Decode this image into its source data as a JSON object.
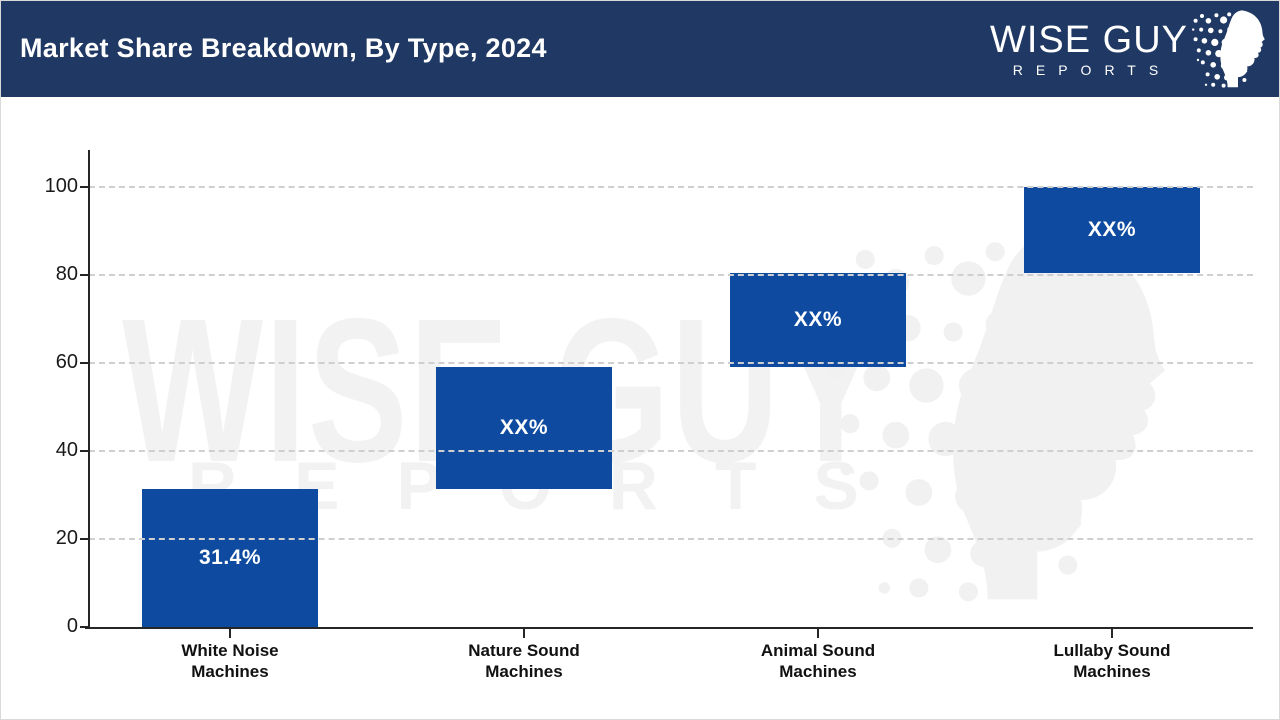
{
  "header": {
    "title": "Market Share Breakdown, By Type, 2024",
    "bg_color": "#203864",
    "logo": {
      "name": "WISE GUY",
      "sub": "REPORTS"
    }
  },
  "watermark": {
    "text_top": "WISE GUY",
    "text_bottom": "REPORTS"
  },
  "chart_data": {
    "type": "bar",
    "subtype": "waterfall",
    "title": "Market Share Breakdown, By Type, 2024",
    "xlabel": "",
    "ylabel": "",
    "ylim": [
      0,
      100
    ],
    "yticks": [
      0,
      20,
      40,
      60,
      80,
      100
    ],
    "grid": "horizontal-dashed-over-bars",
    "legend": "none",
    "bar_color": "#0d4aa0",
    "value_label_color": "#ffffff",
    "categories": [
      "White Noise\nMachines",
      "Nature Sound\nMachines",
      "Animal Sound\nMachines",
      "Lullaby Sound\nMachines"
    ],
    "bars": [
      {
        "category": "White Noise\nMachines",
        "start": 0,
        "end": 31.4,
        "value_label": "31.4%"
      },
      {
        "category": "Nature Sound\nMachines",
        "start": 31.4,
        "end": 59.0,
        "value_label": "XX%"
      },
      {
        "category": "Animal Sound\nMachines",
        "start": 59.0,
        "end": 80.5,
        "value_label": "XX%"
      },
      {
        "category": "Lullaby Sound\nMachines",
        "start": 80.5,
        "end": 100.0,
        "value_label": "XX%"
      }
    ]
  }
}
